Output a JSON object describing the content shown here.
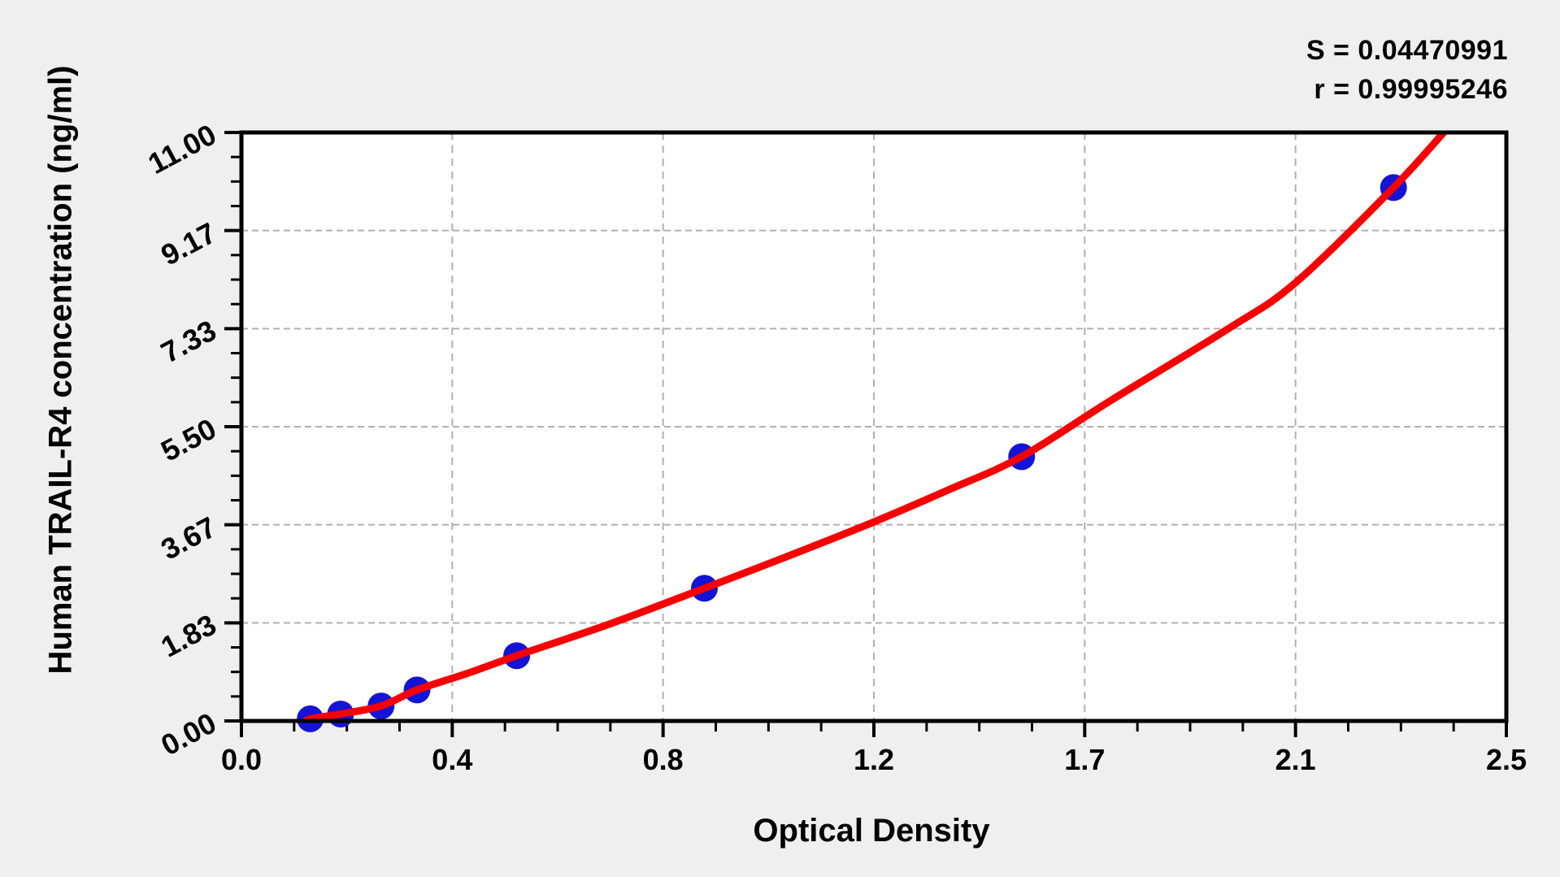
{
  "stats": {
    "s_line": "S = 0.04470991",
    "r_line": "r = 0.99995246"
  },
  "chart_data": {
    "type": "scatter",
    "title": "",
    "xlabel": "Optical Density",
    "ylabel": "Human TRAIL-R4 concentration (ng/ml)",
    "xlim": [
      0,
      2.5
    ],
    "ylim": [
      0,
      11
    ],
    "x_tick_labels": [
      "0.0",
      "0.4",
      "0.8",
      "1.2",
      "1.7",
      "2.1",
      "2.5"
    ],
    "y_tick_labels": [
      "0.00",
      "1.83",
      "3.67",
      "5.50",
      "7.33",
      "9.17",
      "11.00"
    ],
    "minor_divisions_per_major": 4,
    "grid": "dashed gray at major ticks",
    "legend_position": "none",
    "annotations": [
      "S = 0.04470991",
      "r = 0.99995246"
    ],
    "series": [
      {
        "name": "standard points",
        "marker": "circle",
        "x": [
          0.136,
          0.196,
          0.276,
          0.347,
          0.544,
          0.915,
          1.542,
          2.277
        ],
        "y": [
          0.04,
          0.13,
          0.28,
          0.58,
          1.22,
          2.48,
          4.94,
          9.97
        ]
      },
      {
        "name": "fitted standard curve",
        "style": "line",
        "S": "0.04470991",
        "r": "0.99995246",
        "anchors": [
          [
            0.122,
            -0.05
          ],
          [
            0.136,
            0.04
          ],
          [
            0.196,
            0.13
          ],
          [
            0.276,
            0.28
          ],
          [
            0.347,
            0.58
          ],
          [
            0.45,
            0.9
          ],
          [
            0.544,
            1.22
          ],
          [
            0.73,
            1.82
          ],
          [
            0.915,
            2.48
          ],
          [
            1.08,
            3.08
          ],
          [
            1.25,
            3.72
          ],
          [
            1.4,
            4.33
          ],
          [
            1.542,
            4.94
          ],
          [
            1.72,
            6.0
          ],
          [
            1.95,
            7.33
          ],
          [
            2.083,
            8.19
          ],
          [
            2.277,
            9.97
          ],
          [
            2.39,
            11.15
          ]
        ]
      }
    ],
    "colors": {
      "point": "#1414d7",
      "curve": "#f70000",
      "grid": "#b0b0b0",
      "frame": "#000000",
      "plot_bg": "#ffffff",
      "page_bg": "#efefef",
      "text": "#000000"
    }
  }
}
